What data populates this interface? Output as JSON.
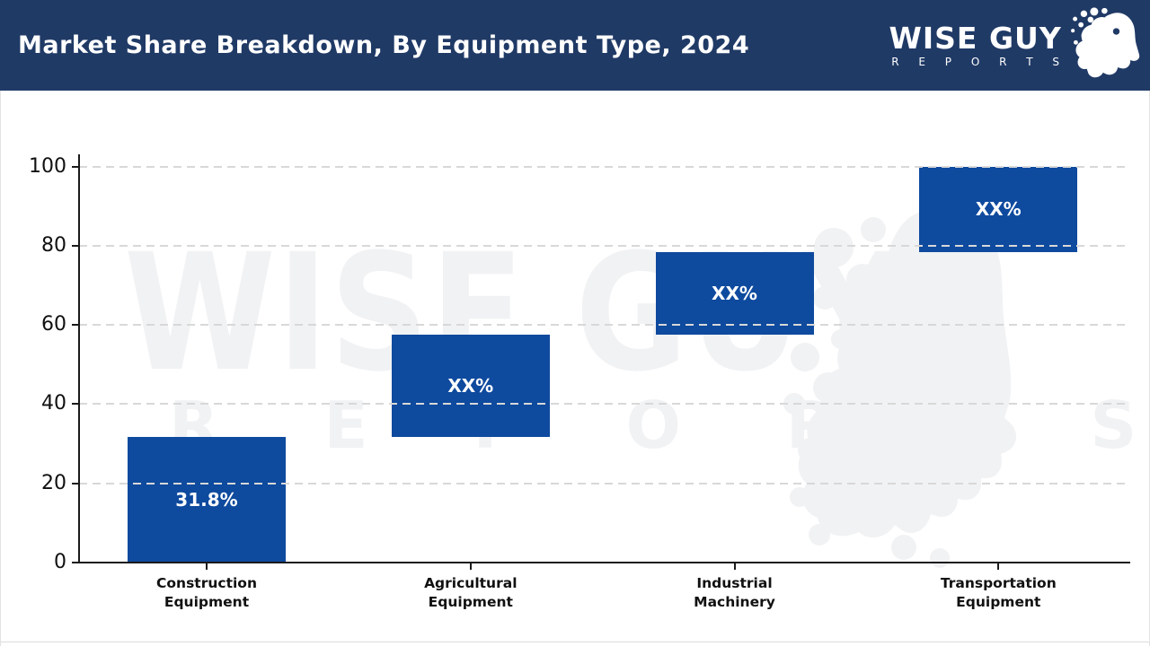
{
  "header": {
    "title": "Market Share Breakdown, By Equipment Type, 2024",
    "background": "#203a66",
    "logo": {
      "brand_line1": "WISE GUY",
      "brand_line2": "R E P O R T S"
    }
  },
  "watermark": {
    "line1": "WISE GUY",
    "line2": "R E P O R T S"
  },
  "chart_data": {
    "type": "bar",
    "subtype": "waterfall",
    "title": "Market Share Breakdown, By Equipment Type, 2024",
    "categories": [
      "Construction Equipment",
      "Agricultural Equipment",
      "Industrial Machinery",
      "Transportation Equipment"
    ],
    "category_display_lines": [
      [
        "Construction",
        "Equipment"
      ],
      [
        "Agricultural",
        "Equipment"
      ],
      [
        "Industrial",
        "Machinery"
      ],
      [
        "Transportation",
        "Equipment"
      ]
    ],
    "series": [
      {
        "name": "Construction Equipment",
        "start": 0,
        "end": 31.8,
        "label": "31.8%"
      },
      {
        "name": "Agricultural Equipment",
        "start": 31.8,
        "end": 57.5,
        "label": "XX%"
      },
      {
        "name": "Industrial Machinery",
        "start": 57.5,
        "end": 78.3,
        "label": "XX%"
      },
      {
        "name": "Transportation Equipment",
        "start": 78.3,
        "end": 100,
        "label": "XX%"
      }
    ],
    "xlabel": "",
    "ylabel": "",
    "ylim": [
      0,
      100
    ],
    "yticks": [
      0,
      20,
      40,
      60,
      80,
      100
    ],
    "grid": {
      "axis": "y",
      "style": "dashed",
      "color": "#d8d8d8",
      "on_top_of_bars": true
    },
    "legend": "none",
    "bar_color": "#0e4a9e",
    "bar_label_color": "#ffffff",
    "axis_color": "#1a1a1a"
  }
}
